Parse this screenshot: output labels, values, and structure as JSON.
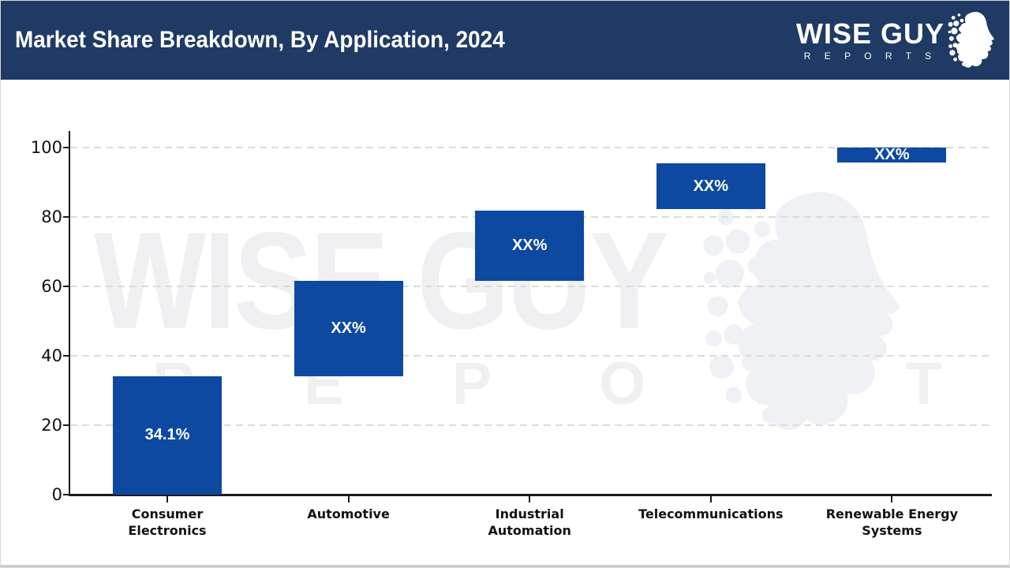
{
  "header": {
    "title": "Market Share Breakdown, By Application, 2024",
    "bg_color": "#1f3a64",
    "logo": {
      "brand": "WISE GUY",
      "sub": "R E P O R T S"
    }
  },
  "watermark": {
    "brand": "WISE GUY",
    "sub": "R E P O R T S"
  },
  "chart_data": {
    "type": "bar",
    "subtype": "waterfall-floating-bars",
    "title": "Market Share Breakdown, By Application, 2024",
    "categories": [
      "Consumer Electronics",
      "Automotive",
      "Industrial Automation",
      "Telecommunications",
      "Renewable Energy Systems"
    ],
    "category_lines": [
      [
        "Consumer",
        "Electronics"
      ],
      [
        "Automotive"
      ],
      [
        "Industrial",
        "Automation"
      ],
      [
        "Telecommunications"
      ],
      [
        "Renewable Energy",
        "Systems"
      ]
    ],
    "bars": [
      {
        "category": "Consumer Electronics",
        "label": "34.1%",
        "start": 0,
        "end": 34.1
      },
      {
        "category": "Automotive",
        "label": "XX%",
        "start": 34.1,
        "end": 61.5
      },
      {
        "category": "Industrial Automation",
        "label": "XX%",
        "start": 61.5,
        "end": 81.8
      },
      {
        "category": "Telecommunications",
        "label": "XX%",
        "start": 82.2,
        "end": 95.4
      },
      {
        "category": "Renewable Energy Systems",
        "label": "XX%",
        "start": 95.6,
        "end": 100
      }
    ],
    "segment_sizes": [
      34.1,
      27.4,
      20.3,
      13.2,
      4.4
    ],
    "xlabel": "",
    "ylabel": "",
    "ylim": [
      0,
      100
    ],
    "yticks": [
      0,
      20,
      40,
      60,
      80,
      100
    ],
    "grid": {
      "axis": "y",
      "style": "dashed",
      "color": "#dcdcdc"
    },
    "legend": null,
    "bar_color": "#0d49a0",
    "bar_label_color": "#ffffff"
  }
}
